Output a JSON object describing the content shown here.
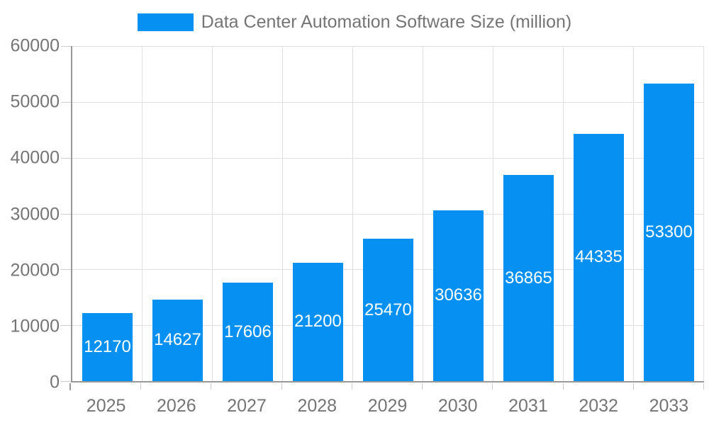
{
  "legend": {
    "label": "Data Center Automation Software Size (million)"
  },
  "chart_data": {
    "type": "bar",
    "title": "Data Center Automation Software Size (million)",
    "categories": [
      "2025",
      "2026",
      "2027",
      "2028",
      "2029",
      "2030",
      "2031",
      "2032",
      "2033"
    ],
    "values": [
      12170,
      14627,
      17606,
      21200,
      25470,
      30636,
      36865,
      44335,
      53300
    ],
    "xlabel": "",
    "ylabel": "",
    "ylim": [
      0,
      60000
    ],
    "yticks": [
      0,
      10000,
      20000,
      30000,
      40000,
      50000,
      60000
    ],
    "grid": true,
    "legend_position": "top-center",
    "bar_width_pct_of_category": 71,
    "colors": {
      "bar": "#0691F2",
      "value_label": "#ffffff",
      "axis_text": "#757575",
      "axis_line": "#999999",
      "gridline": "#e0e0e0",
      "tick": "#cccccc"
    }
  }
}
